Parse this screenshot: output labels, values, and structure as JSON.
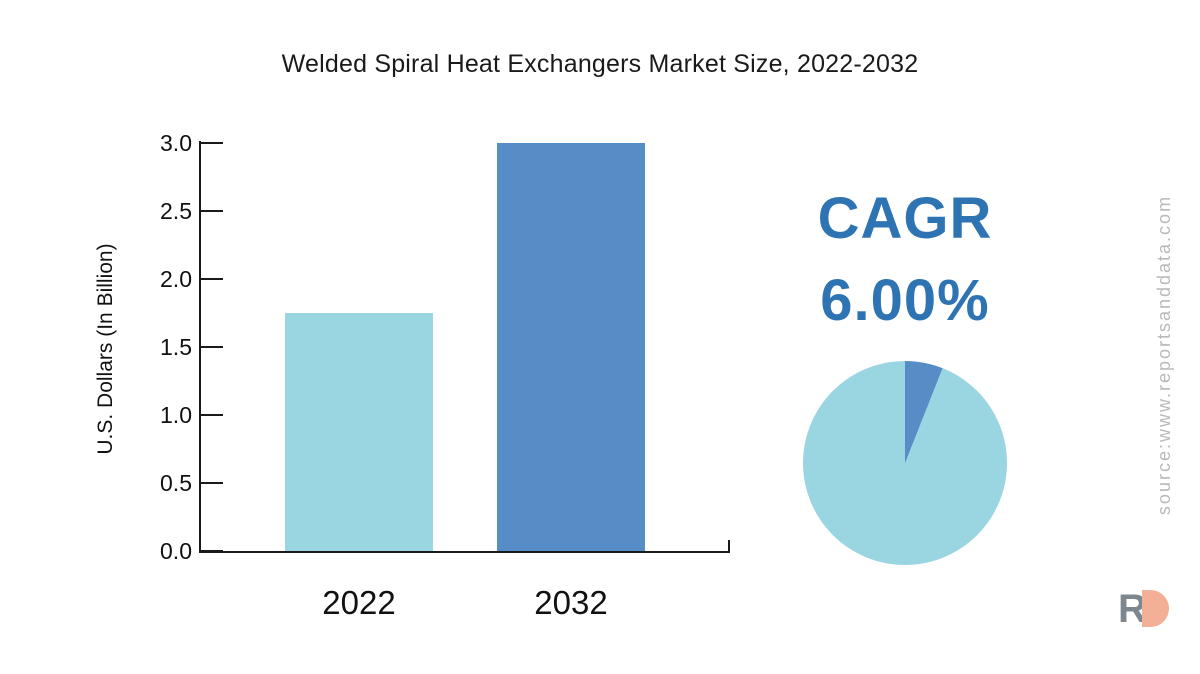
{
  "title": "Welded Spiral Heat Exchangers Market Size, 2022-2032",
  "cagr": {
    "label": "CAGR",
    "value": "6.00%",
    "percent": 6,
    "color": "#2e74b2"
  },
  "source_text": "source:www.reportsanddata.com",
  "logo": {
    "letter_r": "R",
    "r_color": "#7d878f",
    "d_color": "#f4b096"
  },
  "chart_data": [
    {
      "type": "bar",
      "categories": [
        "2022",
        "2032"
      ],
      "values": [
        1.75,
        3.0
      ],
      "bar_colors": [
        "#9ad5e2",
        "#568dc6"
      ],
      "title": "Welded Spiral Heat Exchangers Market Size, 2022-2032",
      "xlabel": "",
      "ylabel": "U.S. Dollars (In Billion)",
      "ylim": [
        0,
        3.0
      ],
      "yticks": [
        0.0,
        0.5,
        1.0,
        1.5,
        2.0,
        2.5,
        3.0
      ],
      "grid": false,
      "legend": "none"
    },
    {
      "type": "pie",
      "title": "CAGR 6.00%",
      "slices": [
        {
          "label": "CAGR share",
          "value": 6,
          "color": "#568dc6"
        },
        {
          "label": "remainder",
          "value": 94,
          "color": "#9ad5e2"
        }
      ],
      "start_angle": "12-o-clock",
      "direction": "clockwise"
    }
  ]
}
